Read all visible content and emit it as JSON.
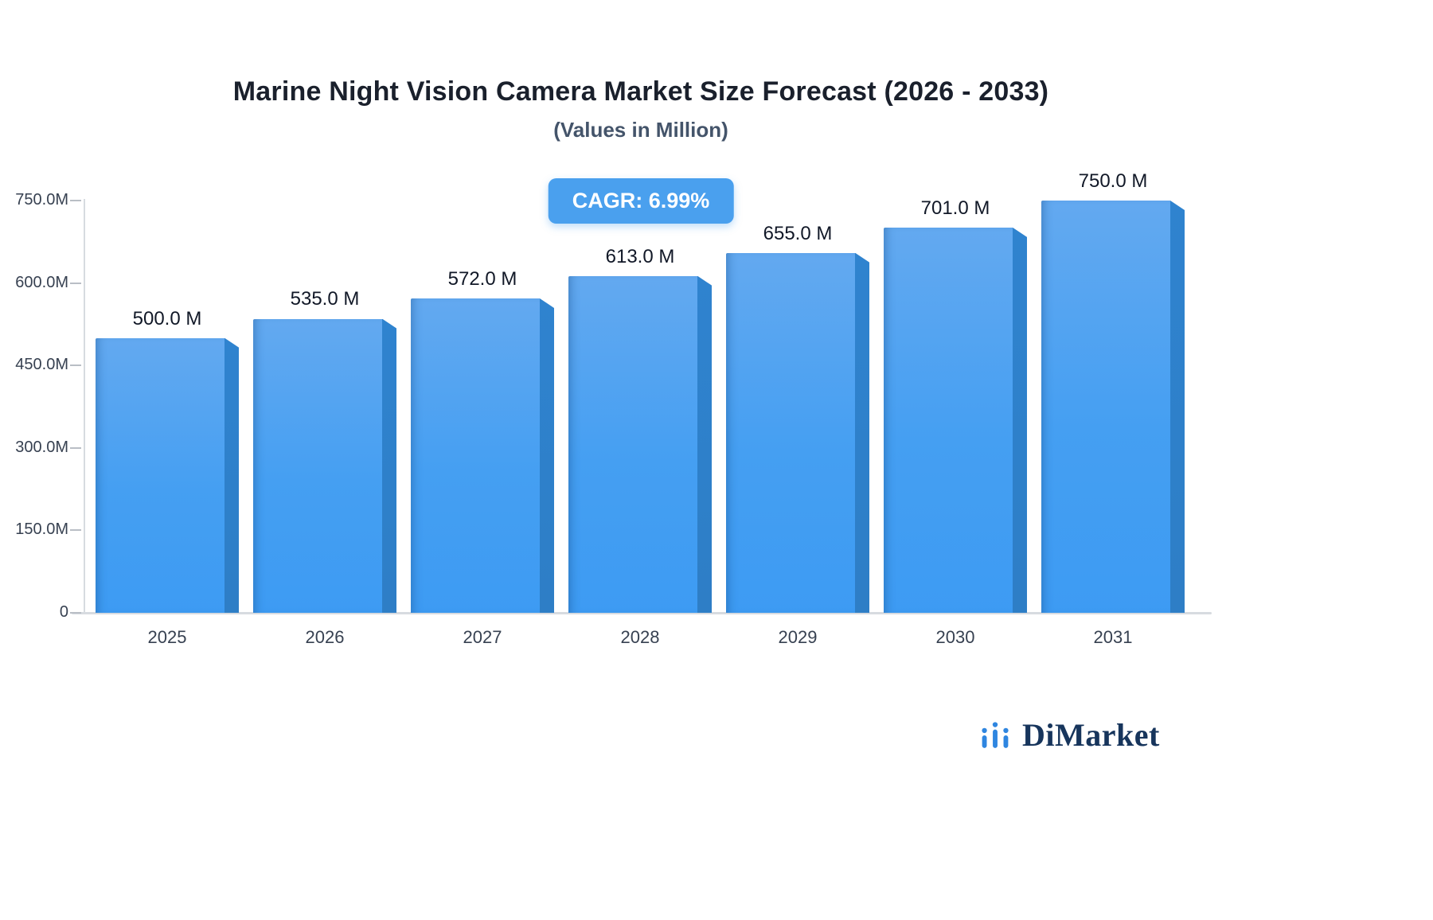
{
  "header": {
    "title": "Marine Night Vision Camera Market Size Forecast (2026 - 2033)",
    "subtitle": "(Values in Million)",
    "cagr_label": "CAGR: 6.99%"
  },
  "chart_data": {
    "type": "bar",
    "title": "Marine Night Vision Camera Market Size Forecast (2026 - 2033)",
    "subtitle": "(Values in Million)",
    "categories": [
      "2025",
      "2026",
      "2027",
      "2028",
      "2029",
      "2030",
      "2031"
    ],
    "values": [
      500,
      535,
      572,
      613,
      655,
      701,
      750
    ],
    "value_labels": [
      "500.0 M",
      "535.0 M",
      "572.0 M",
      "613.0 M",
      "655.0 M",
      "701.0 M",
      "750.0 M"
    ],
    "xlabel": "",
    "ylabel": "",
    "ylim": [
      0,
      750
    ],
    "y_ticks": [
      "0",
      "150.0M",
      "300.0M",
      "450.0M",
      "600.0M",
      "750.0M"
    ],
    "y_tick_values": [
      0,
      150,
      300,
      450,
      600,
      750
    ],
    "grid": false,
    "legend": "none",
    "annotation": "CAGR: 6.99%",
    "bar_color_top": "#63a9f0",
    "bar_color_bottom": "#3d9bf3",
    "bar_side_color": "#2e7ec6"
  },
  "branding": {
    "logo_text": "DiMarket",
    "logo_color": "#17355c",
    "logo_icon_color": "#2f86e0"
  },
  "colors": {
    "accent": "#4aa0ee",
    "title_text": "#1a202c",
    "subtitle_text": "#44546a",
    "axis_line": "#d7dbe0"
  }
}
